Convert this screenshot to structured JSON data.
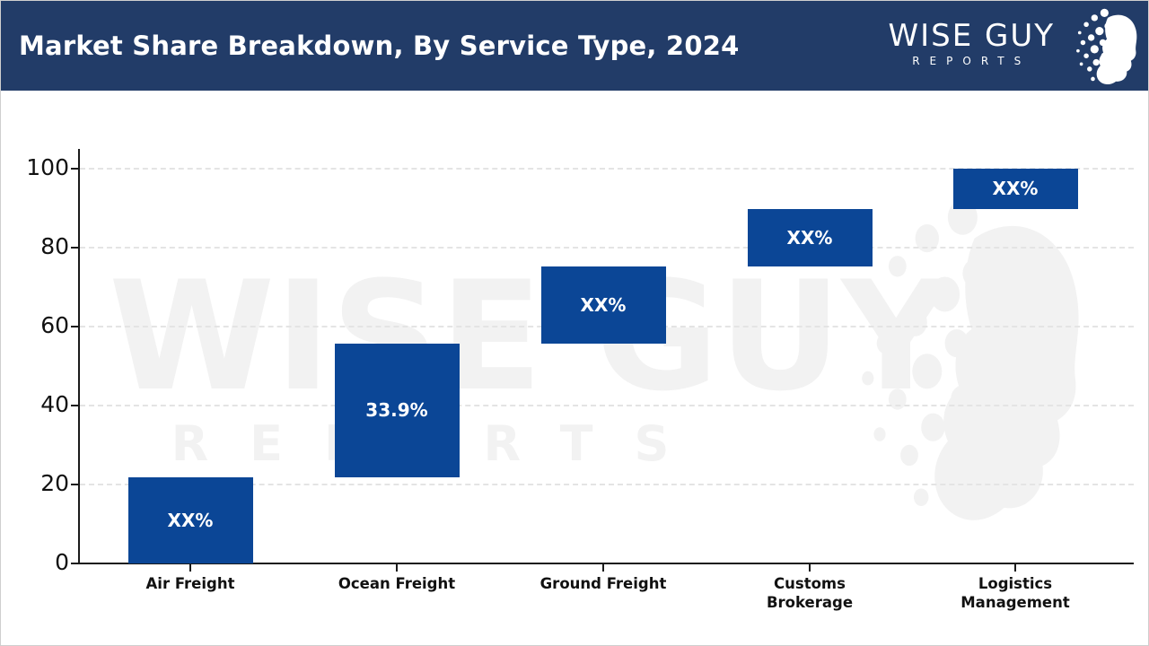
{
  "header": {
    "title": "Market Share Breakdown, By Service Type, 2024",
    "logo_line1": "WISE GUY",
    "logo_line2": "REPORTS",
    "bg_color": "#223C68"
  },
  "watermark": {
    "line1": "WISE GUY",
    "line2": "REPORTS"
  },
  "chart_data": {
    "type": "bar",
    "subtype": "waterfall",
    "title": "Market Share Breakdown, By Service Type, 2024",
    "categories": [
      "Air Freight",
      "Ocean Freight",
      "Ground Freight",
      "Customs Brokerage",
      "Logistics Management"
    ],
    "segments": [
      {
        "category": "Air Freight",
        "start": 0,
        "end": 21.8,
        "label": "XX%"
      },
      {
        "category": "Ocean Freight",
        "start": 21.8,
        "end": 55.7,
        "label": "33.9%"
      },
      {
        "category": "Ground Freight",
        "start": 55.7,
        "end": 75.2,
        "label": "XX%"
      },
      {
        "category": "Customs Brokerage",
        "start": 75.2,
        "end": 89.8,
        "label": "XX%"
      },
      {
        "category": "Logistics Management",
        "start": 89.8,
        "end": 100,
        "label": "XX%"
      }
    ],
    "yticks": [
      0,
      20,
      40,
      60,
      80,
      100
    ],
    "ylim": [
      0,
      105
    ],
    "xlabel": "",
    "ylabel": "",
    "grid": "dashed-horizontal",
    "legend": "none",
    "bar_color": "#0B4696",
    "bar_label_color": "#ffffff",
    "axis_color": "#1a1a1a"
  }
}
